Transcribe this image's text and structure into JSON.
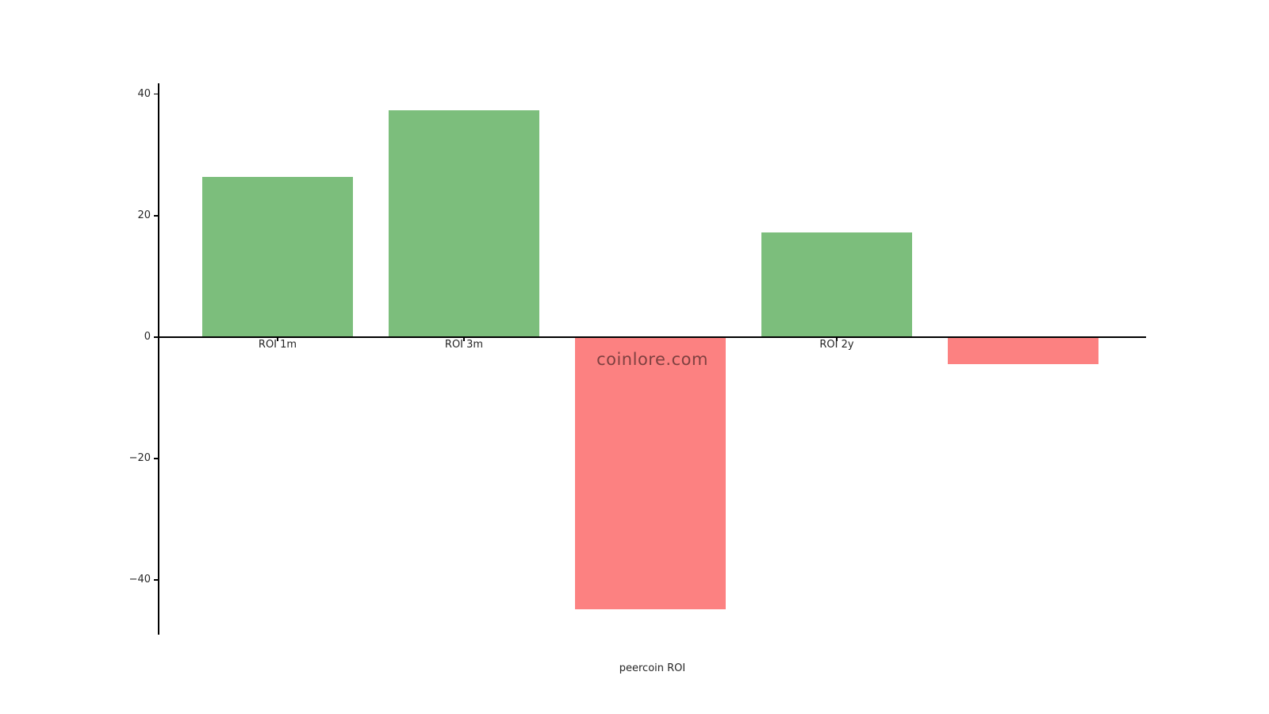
{
  "page": {
    "background_color": "#ffffff"
  },
  "chart_data": {
    "type": "bar",
    "title": "",
    "xlabel": "peercoin ROI",
    "ylabel": "",
    "watermark": "coinlore.com",
    "categories": [
      "ROI 1m",
      "ROI 3m",
      null,
      "ROI 2y",
      null
    ],
    "values": [
      26.4,
      37.3,
      -44.8,
      17.2,
      -4.4
    ],
    "bar_colors": [
      "#7cbe7c",
      "#7cbe7c",
      "#fc8181",
      "#7cbe7c",
      "#fc8181"
    ],
    "positive_color": "#7cbe7c",
    "negative_color": "#fc8181",
    "yticks": [
      {
        "value": 40,
        "label": "40"
      },
      {
        "value": 20,
        "label": "20"
      },
      {
        "value": 0,
        "label": "0"
      },
      {
        "value": -20,
        "label": "−20"
      },
      {
        "value": -40,
        "label": "−40"
      }
    ],
    "ylim": [
      -49.0,
      41.8
    ],
    "grid": false,
    "legend": false,
    "axis_color": "#000000",
    "tick_text_color": "#262626",
    "watermark_color": "rgba(0,0,0,0.5)"
  }
}
